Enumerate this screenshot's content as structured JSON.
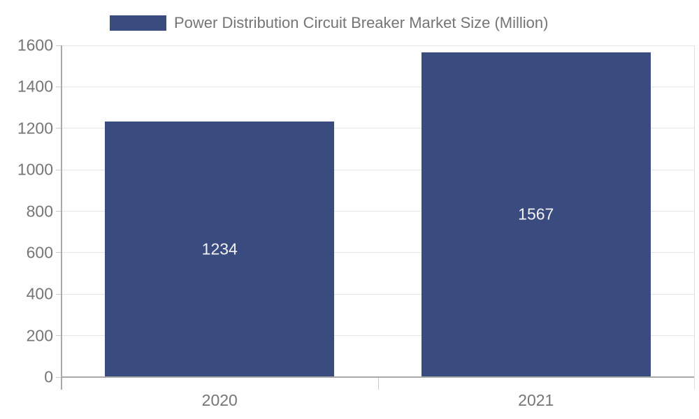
{
  "legend": {
    "label": "Power Distribution Circuit Breaker Market Size (Million)"
  },
  "chart_data": {
    "type": "bar",
    "title": "",
    "xlabel": "",
    "ylabel": "",
    "categories": [
      "2020",
      "2021"
    ],
    "values": [
      1234,
      1567
    ],
    "series_name": "Power Distribution Circuit Breaker Market Size (Million)",
    "value_labels": [
      "1234",
      "1567"
    ],
    "ylim": [
      0,
      1600
    ],
    "yticks": [
      0,
      200,
      400,
      600,
      800,
      1000,
      1200,
      1400,
      1600
    ],
    "grid": true,
    "legend_position": "top",
    "colors": {
      "bar": "#3A4B80",
      "value_label": "#F2F2F2",
      "tick_text": "#757575",
      "legend_text": "#757575",
      "axis_line": "#A9A9A9",
      "gridline": "#E5E5E5",
      "tick_mark": "#CCCCCC",
      "right_border": "#E0E0E0",
      "background": "#FFFFFF"
    }
  }
}
